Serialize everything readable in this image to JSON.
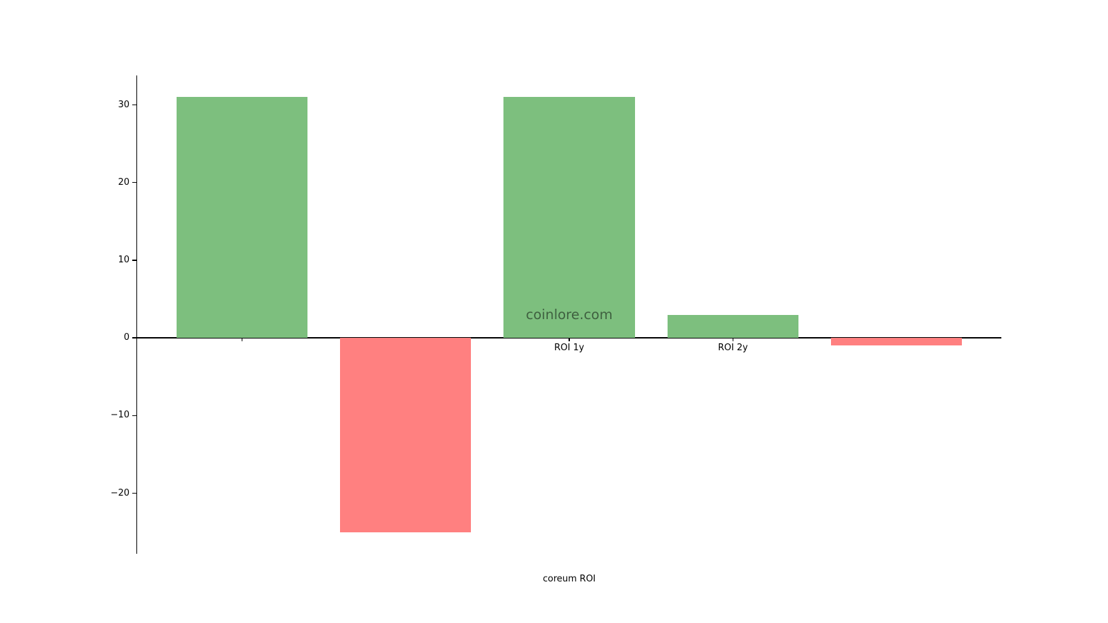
{
  "watermark": "coinlore.com",
  "chart_data": {
    "type": "bar",
    "title": "",
    "xlabel": "coreum ROI",
    "ylabel": "",
    "categories": [
      "",
      "",
      "ROI 1y",
      "ROI 2y",
      ""
    ],
    "values": [
      31,
      -25,
      31,
      3,
      -1
    ],
    "series": [
      {
        "name": "coreum ROI",
        "values": [
          31,
          -25,
          31,
          3,
          -1
        ]
      }
    ],
    "yticks": [
      30,
      20,
      10,
      0,
      -10,
      -20
    ],
    "ytick_labels": [
      "30",
      "20",
      "10",
      "0",
      "−10",
      "−20"
    ],
    "ylim": [
      -27.8,
      33.8
    ],
    "xlim": [
      -0.64,
      4.64
    ],
    "bar_width": 0.8,
    "grid": false,
    "legend": "none",
    "colors": {
      "positive": "#7dbf7e",
      "negative": "#ff8080",
      "axis": "#000000",
      "watermark": "rgba(0,0,0,0.5)"
    }
  }
}
